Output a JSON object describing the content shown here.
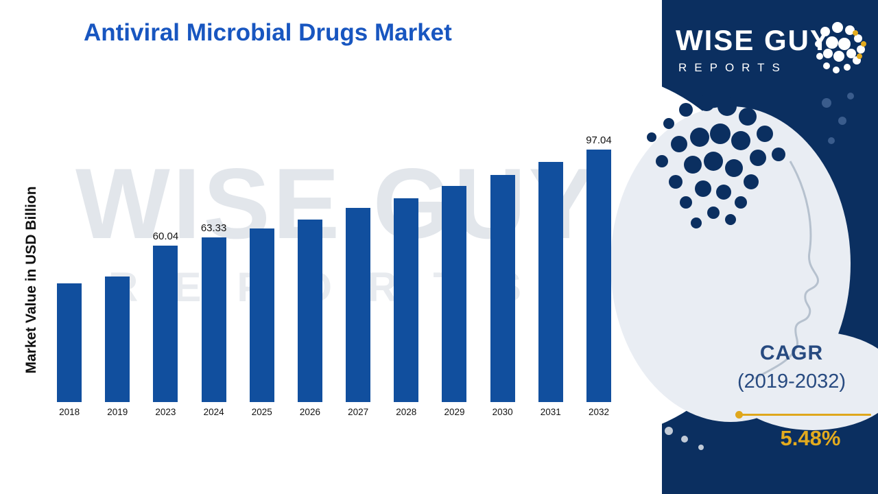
{
  "title": "Antiviral Microbial Drugs Market",
  "brand": {
    "name_top": "WISE GUY",
    "name_bottom": "REPORTS"
  },
  "watermark": {
    "line1": "WISE GUY",
    "line2": "REPORTS"
  },
  "cagr": {
    "label": "CAGR",
    "range": "(2019-2032)",
    "value": "5.48%"
  },
  "chart_data": {
    "type": "bar",
    "title": "Antiviral Microbial Drugs Market",
    "xlabel": "",
    "ylabel": "Market Value in USD Billion",
    "categories": [
      "2018",
      "2019",
      "2023",
      "2024",
      "2025",
      "2026",
      "2027",
      "2028",
      "2029",
      "2030",
      "2031",
      "2032"
    ],
    "values": [
      45.6,
      48.2,
      60.04,
      63.33,
      66.8,
      70.1,
      74.5,
      78.4,
      83.0,
      87.3,
      92.2,
      97.04
    ],
    "data_labels": {
      "2023": "60.04",
      "2024": "63.33",
      "2032": "97.04"
    },
    "ylim": [
      0,
      105
    ],
    "grid": false,
    "legend": false,
    "bar_color": "#114f9e"
  },
  "colors": {
    "title_blue": "#1856c0",
    "panel_navy": "#0b2f60",
    "bar_blue": "#114f9e",
    "gold": "#dfa71c",
    "cagr_text": "#274a80"
  }
}
